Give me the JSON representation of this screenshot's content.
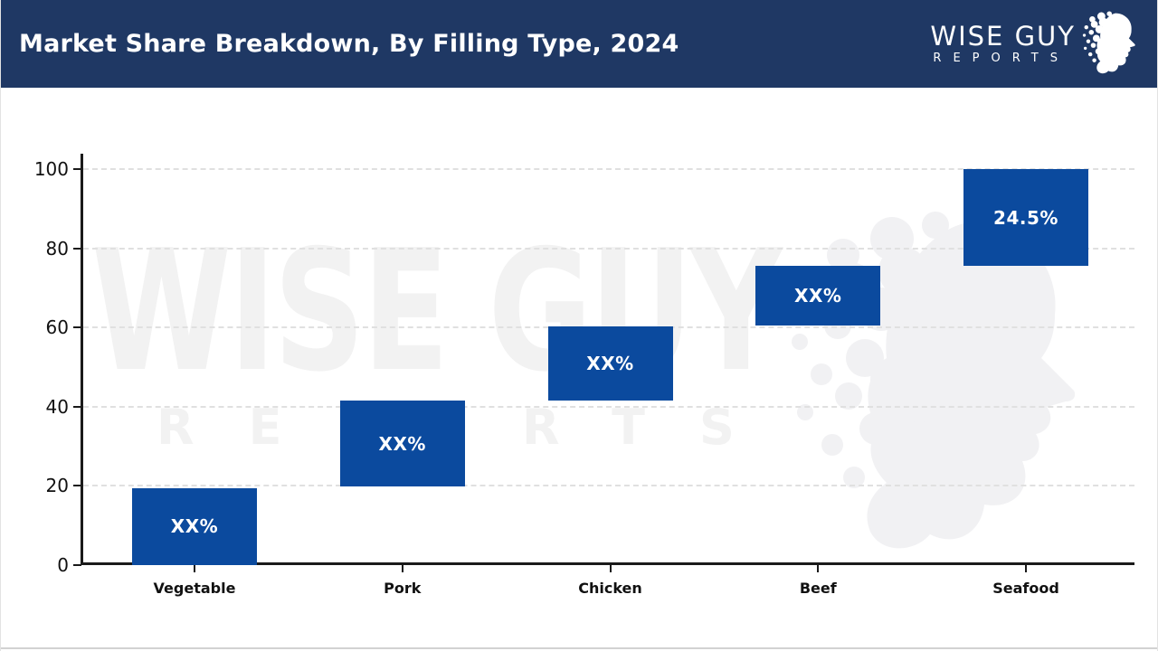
{
  "header": {
    "title": "Market Share Breakdown, By Filling Type, 2024",
    "bg_color": "#1f3864",
    "logo": {
      "line1": "WISE GUY",
      "line2": "REPORTS"
    }
  },
  "watermark": {
    "line1": "WISE GUY",
    "line2": "REPORTS"
  },
  "chart_data": {
    "type": "bar",
    "variant": "waterfall-floating-bars",
    "title": "Market Share Breakdown, By Filling Type, 2024",
    "categories": [
      "Vegetable",
      "Pork",
      "Chicken",
      "Beef",
      "Seafood"
    ],
    "segments": [
      {
        "category": "Vegetable",
        "start": 0,
        "end": 19.5,
        "label": "XX%"
      },
      {
        "category": "Pork",
        "start": 19.8,
        "end": 41.5,
        "label": "XX%"
      },
      {
        "category": "Chicken",
        "start": 41.5,
        "end": 60.3,
        "label": "XX%"
      },
      {
        "category": "Beef",
        "start": 60.5,
        "end": 75.6,
        "label": "XX%"
      },
      {
        "category": "Seafood",
        "start": 75.5,
        "end": 100,
        "label": "24.5%"
      }
    ],
    "xlabel": "",
    "ylabel": "",
    "ylim": [
      0,
      100
    ],
    "yticks": [
      0,
      20,
      40,
      60,
      80,
      100
    ],
    "grid": "horizontal-dashed",
    "legend": "none",
    "bar_color": "#0b4a9e",
    "bar_label_color": "#ffffff",
    "axis_color": "#1a1a1a"
  }
}
